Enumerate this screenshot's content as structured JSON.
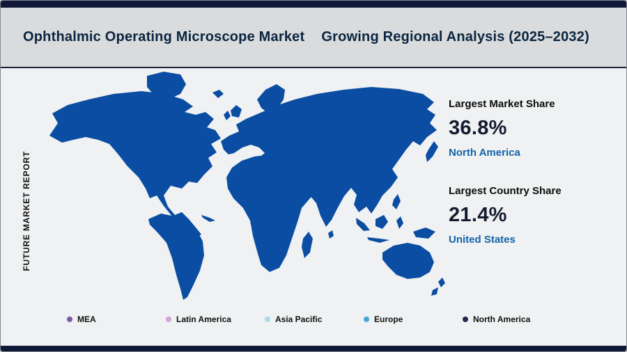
{
  "header": {
    "title_part1": "Ophthalmic Operating Microscope Market",
    "title_part2": "Growing Regional Analysis (2025–2032)"
  },
  "brand": {
    "vertical_label": "FUTURE MARKET REPORT"
  },
  "stats": [
    {
      "label": "Largest Market Share",
      "value": "36.8%",
      "region": "North America"
    },
    {
      "label": "Largest Country Share",
      "value": "21.4%",
      "region": "United States"
    }
  ],
  "legend": {
    "items": [
      {
        "label": "MEA",
        "color": "#7d57a3"
      },
      {
        "label": "Latin America",
        "color": "#d2a4d8"
      },
      {
        "label": "Asia Pacific",
        "color": "#a9dce8"
      },
      {
        "label": "Europe",
        "color": "#46a6d9"
      },
      {
        "label": "North America",
        "color": "#232a4d"
      }
    ]
  },
  "colors": {
    "map_fill": "#0b4da2",
    "accent_blue": "#1464ab",
    "bar_navy": "#101a38",
    "title_navy": "#0a2540"
  },
  "chart_data": {
    "type": "map",
    "title": "Ophthalmic Operating Microscope Market Growing Regional Analysis (2025–2032)",
    "map": "world",
    "map_fill": "#0b4da2",
    "legend_position": "bottom",
    "regions": [
      {
        "name": "MEA",
        "color": "#7d57a3"
      },
      {
        "name": "Latin America",
        "color": "#d2a4d8"
      },
      {
        "name": "Asia Pacific",
        "color": "#a9dce8"
      },
      {
        "name": "Europe",
        "color": "#46a6d9"
      },
      {
        "name": "North America",
        "color": "#232a4d"
      }
    ],
    "stats": [
      {
        "label": "Largest Market Share",
        "value_pct": 36.8,
        "region": "North America"
      },
      {
        "label": "Largest Country Share",
        "value_pct": 21.4,
        "region": "United States"
      }
    ],
    "source_brand": "FUTURE MARKET REPORT"
  }
}
